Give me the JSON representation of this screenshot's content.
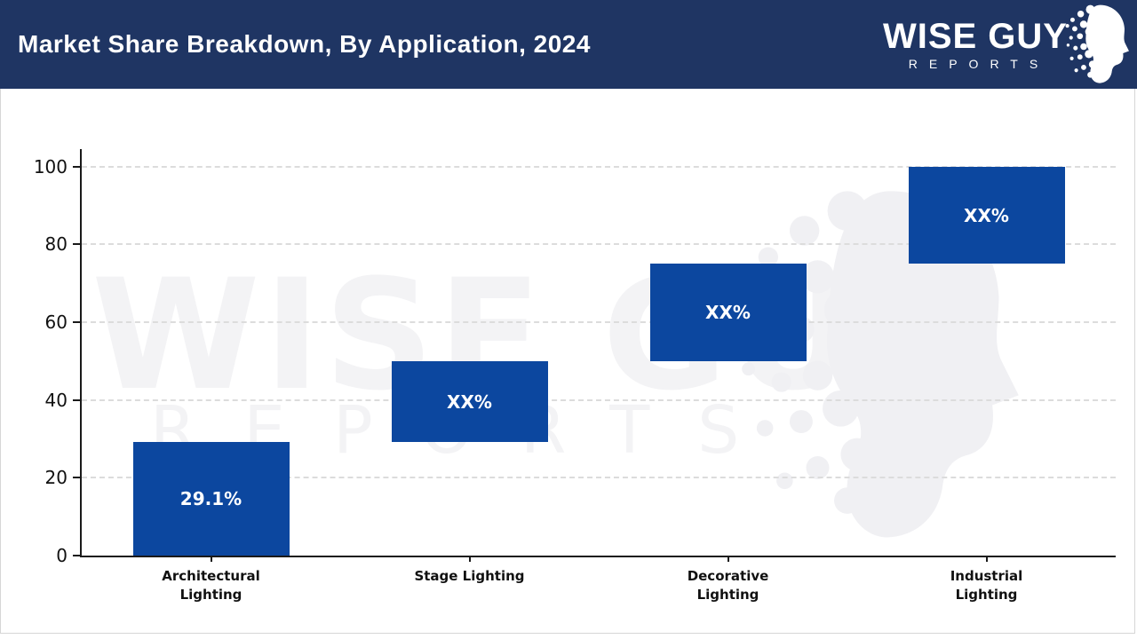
{
  "header": {
    "title": "Market Share Breakdown, By Application, 2024",
    "bg_color": "#1f3563",
    "logo": {
      "line1": "WISE GUY",
      "line2": "REPORTS"
    }
  },
  "watermark": {
    "line1": "WISE GUY",
    "line2": "REPORTS"
  },
  "chart_data": {
    "type": "bar",
    "subtype": "waterfall-floating-bars",
    "title": "Market Share Breakdown, By Application, 2024",
    "xlabel": "",
    "ylabel": "",
    "categories": [
      [
        "Architectural",
        "Lighting"
      ],
      [
        "Stage Lighting"
      ],
      [
        "Decorative",
        "Lighting"
      ],
      [
        "Industrial",
        "Lighting"
      ]
    ],
    "series": [
      {
        "name": "Market Share (%)",
        "segments": [
          {
            "category": "Architectural Lighting",
            "start": 0,
            "end": 29.1,
            "label": "29.1%"
          },
          {
            "category": "Stage Lighting",
            "start": 29.1,
            "end": 50,
            "label": "XX%"
          },
          {
            "category": "Decorative Lighting",
            "start": 50,
            "end": 75,
            "label": "XX%"
          },
          {
            "category": "Industrial Lighting",
            "start": 75,
            "end": 100,
            "label": "XX%"
          }
        ]
      }
    ],
    "yticks": [
      0,
      20,
      40,
      60,
      80,
      100
    ],
    "ylim": [
      0,
      104.5
    ],
    "grid": "horizontal-dashed",
    "legend": "none",
    "bar_color": "#0c479f",
    "bar_label_color": "#ffffff",
    "axis_color": "#1a1a1a"
  }
}
